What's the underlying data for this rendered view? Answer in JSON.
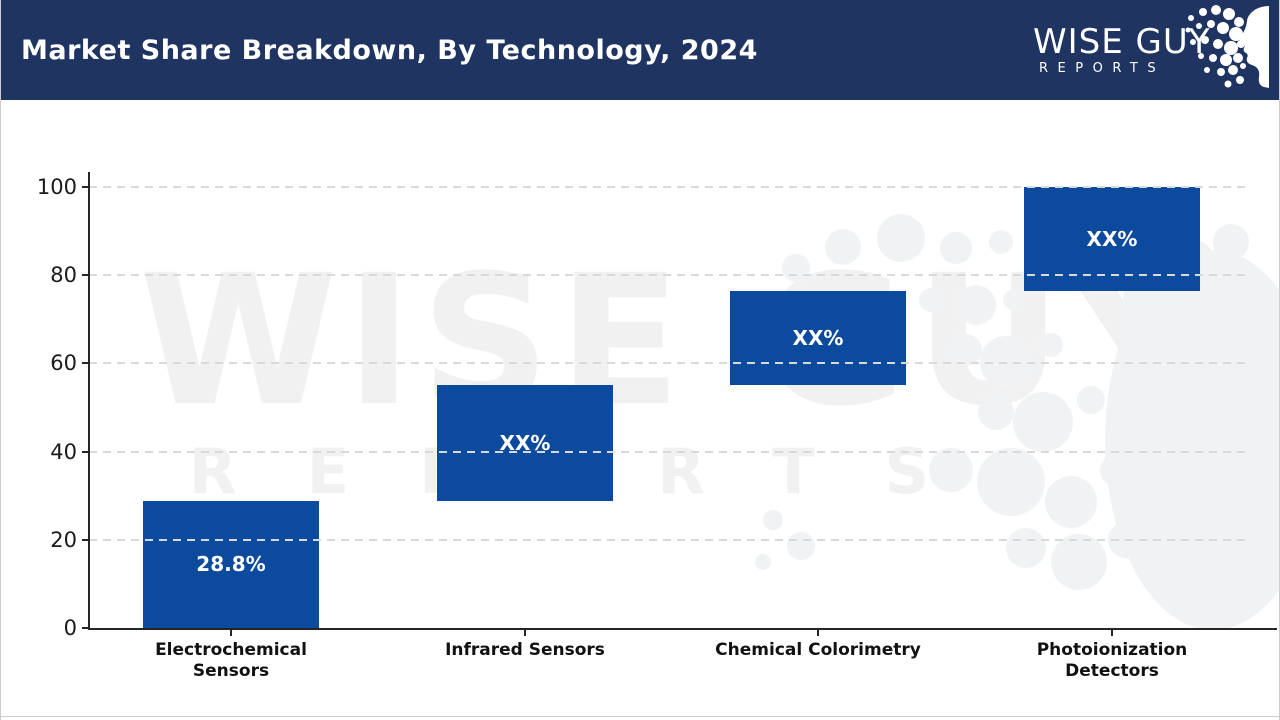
{
  "header": {
    "title": "Market Share Breakdown, By Technology, 2024",
    "background_color": "#1f3461",
    "logo": {
      "line1": "WISE GUY",
      "line2": "REPORTS"
    }
  },
  "watermark": {
    "line1": "WISE GUY",
    "line2": "REPORTS"
  },
  "chart_data": {
    "type": "bar",
    "variant": "waterfall",
    "title": "Market Share Breakdown, By Technology, 2024",
    "categories": [
      "Electrochemical Sensors",
      "Infrared Sensors",
      "Chemical Colorimetry",
      "Photoionization Detectors"
    ],
    "segments": [
      {
        "category": "Electrochemical Sensors",
        "start": 0,
        "end": 28.8,
        "label": "28.8%"
      },
      {
        "category": "Infrared Sensors",
        "start": 28.8,
        "end": 55,
        "label": "XX%"
      },
      {
        "category": "Chemical Colorimetry",
        "start": 55,
        "end": 76.5,
        "label": "XX%"
      },
      {
        "category": "Photoionization Detectors",
        "start": 76.5,
        "end": 100,
        "label": "XX%"
      }
    ],
    "y_ticks": [
      0,
      20,
      40,
      60,
      80,
      100
    ],
    "ylim": [
      0,
      100
    ],
    "grid": "horizontal dashed",
    "legend": "none",
    "bar_color": "#0b4a9c",
    "bar_label_color": "#ffffff",
    "axis_color": "#262626",
    "gridline_color": "#d9d9d9",
    "xlabel": "",
    "ylabel": ""
  }
}
